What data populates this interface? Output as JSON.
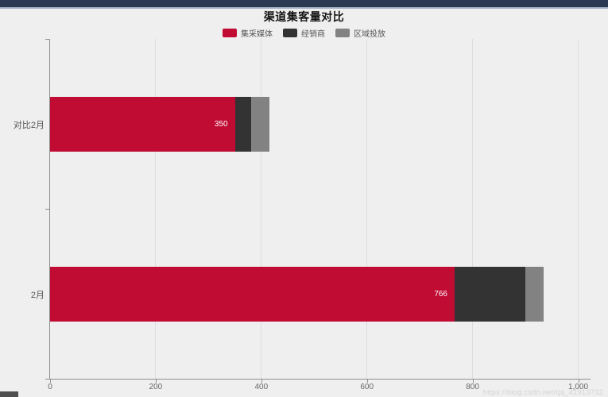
{
  "window": {
    "top_bar_color": "#2b3a50",
    "top_bar_edge_color": "#a6b1c3",
    "background": "#efefef",
    "corner_fragment_color": "#4f4f4f"
  },
  "watermark": "https://blog.csdn.net/qq_41913732",
  "chart_data": {
    "type": "bar",
    "orientation": "horizontal",
    "title": "渠道集客量对比",
    "categories": [
      "对比2月",
      "2月"
    ],
    "series": [
      {
        "name": "集采媒体",
        "color": "#c00b33",
        "values": [
          350,
          766
        ]
      },
      {
        "name": "经销商",
        "color": "#333333",
        "values": [
          31,
          134
        ]
      },
      {
        "name": "区域投放",
        "color": "#828282",
        "values": [
          34,
          35
        ]
      }
    ],
    "value_labels": [
      "350",
      "766"
    ],
    "x_axis": {
      "max": 1000,
      "ticks": [
        0,
        200,
        400,
        600,
        800,
        1000
      ],
      "tick_labels": [
        "0",
        "200",
        "400",
        "600",
        "800",
        "1,000"
      ]
    },
    "grid": true,
    "legend_position": "top",
    "text_colors": {
      "title": "#151515",
      "axis_label": "#666666",
      "category_label": "#555555",
      "value_label": "#ffffff"
    }
  }
}
